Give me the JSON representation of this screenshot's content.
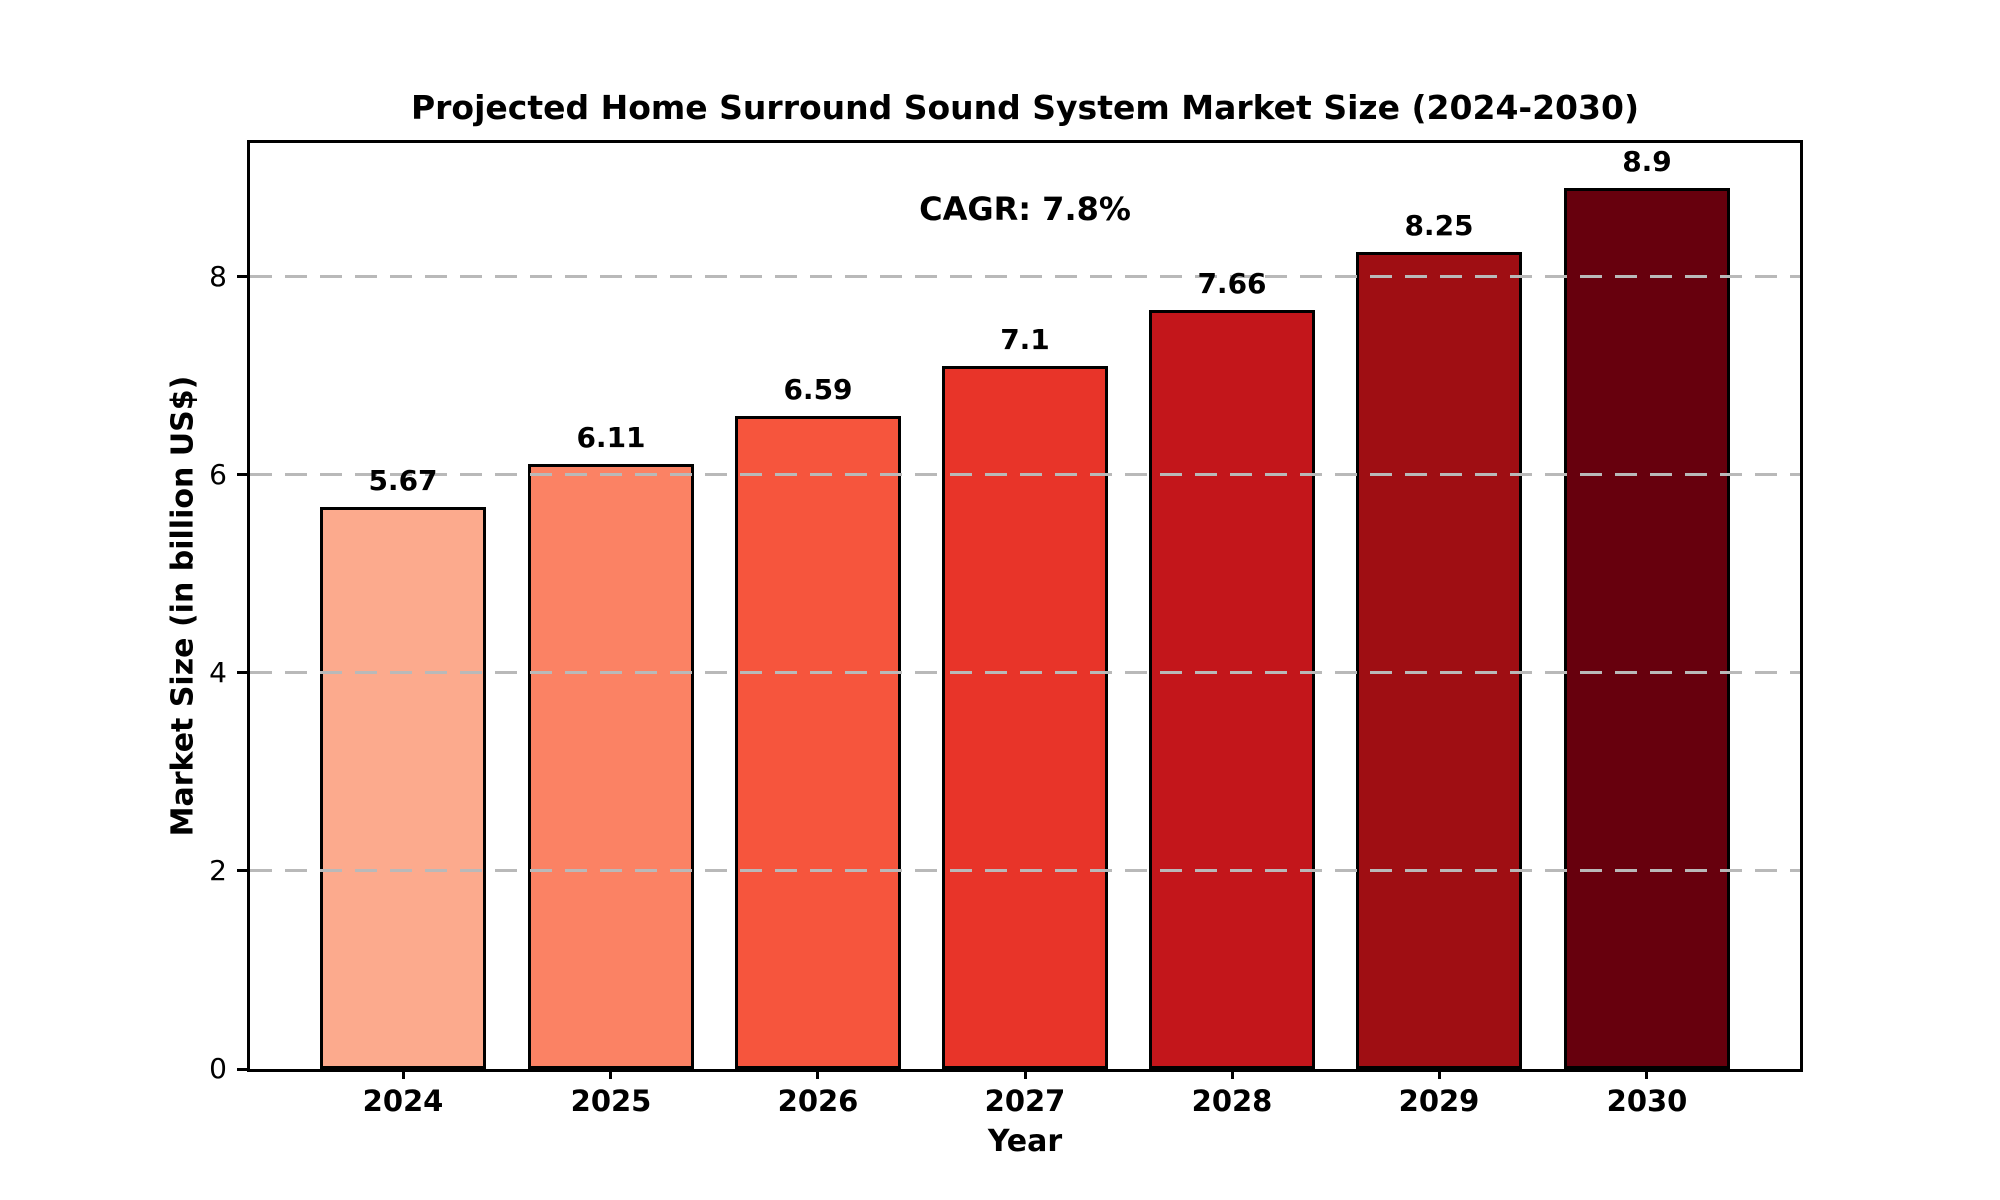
{
  "chart_data": {
    "type": "bar",
    "title": "Projected Home Surround Sound System Market Size (2024-2030)",
    "annotation": "CAGR: 7.8%",
    "xlabel": "Year",
    "ylabel": "Market Size (in billion US$)",
    "categories": [
      "2024",
      "2025",
      "2026",
      "2027",
      "2028",
      "2029",
      "2030"
    ],
    "values": [
      5.67,
      6.11,
      6.59,
      7.1,
      7.66,
      8.25,
      8.9
    ],
    "value_labels": [
      "5.67",
      "6.11",
      "6.59",
      "7.1",
      "7.66",
      "8.25",
      "8.9"
    ],
    "bar_colors": [
      "#fcaa8d",
      "#fb8264",
      "#f6553d",
      "#e83429",
      "#c3161b",
      "#9f0e13",
      "#67000d"
    ],
    "bar_edge_color": "#000000",
    "yticks": [
      0,
      2,
      4,
      6,
      8
    ],
    "ylim": [
      0,
      9.35
    ],
    "grid_values": [
      2,
      4,
      6,
      8
    ],
    "grid_color": "#b9b9b9",
    "grid_style": "dashed",
    "grid_over_bars": true,
    "legend": null,
    "background_color": "#ffffff",
    "text_color": "#000000"
  }
}
